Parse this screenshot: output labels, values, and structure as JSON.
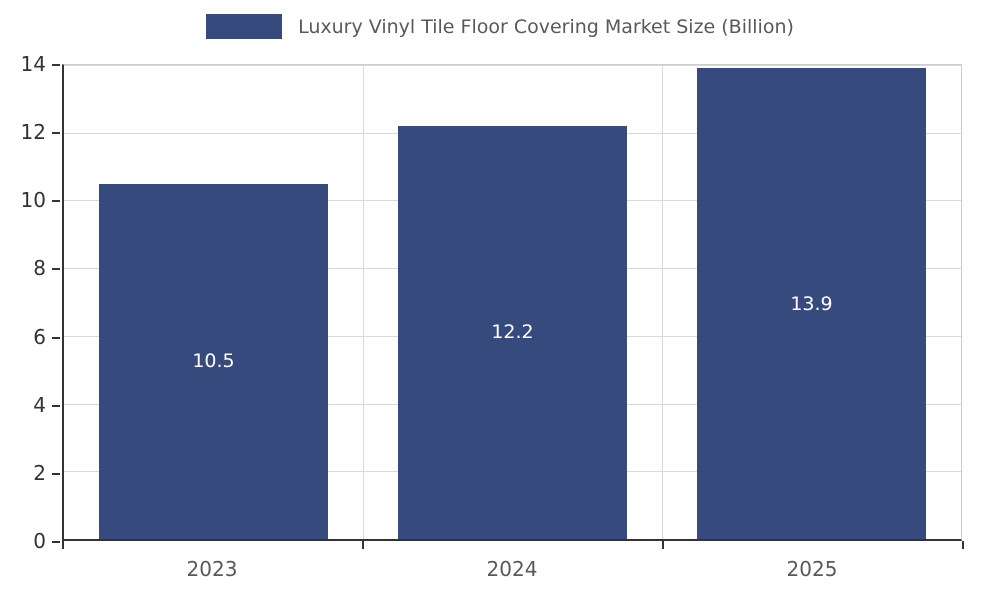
{
  "chart_data": {
    "type": "bar",
    "categories": [
      "2023",
      "2024",
      "2025"
    ],
    "values": [
      10.5,
      12.2,
      13.9
    ],
    "value_labels": [
      "10.5",
      "12.2",
      "13.9"
    ],
    "title": "",
    "legend": "Luxury Vinyl Tile Floor Covering Market Size (Billion)",
    "legend_position": "top-center",
    "xlabel": "",
    "ylabel": "",
    "ylim": [
      0,
      14
    ],
    "yticks": [
      0,
      2,
      4,
      6,
      8,
      10,
      12,
      14
    ],
    "grid": true,
    "bar_color": "#364A7E",
    "value_label_color": "#ffffff",
    "bar_width_fraction": 0.765
  }
}
